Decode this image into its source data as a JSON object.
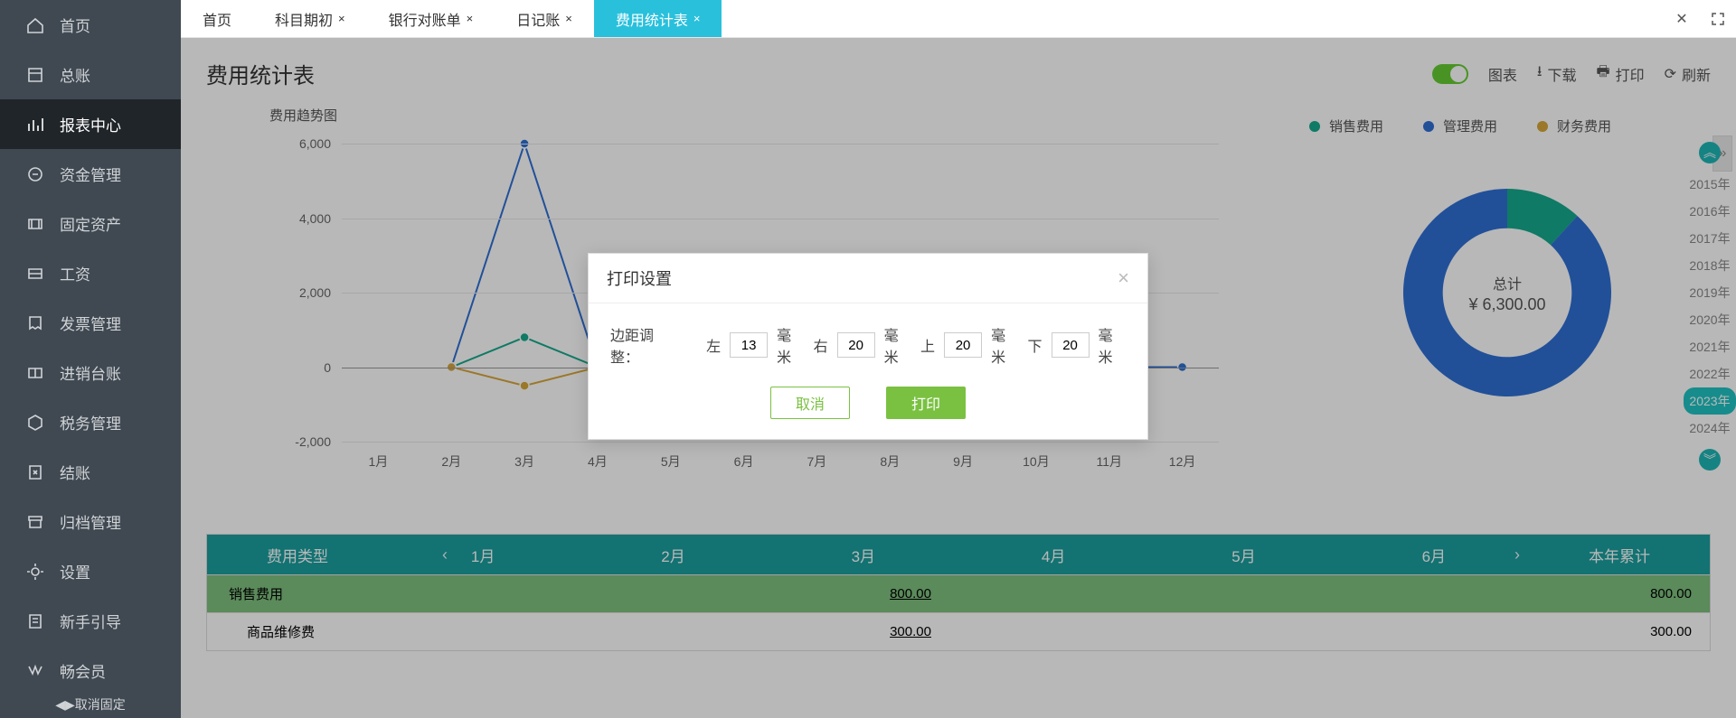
{
  "sidebar": {
    "items": [
      {
        "label": "首页",
        "icon": "home"
      },
      {
        "label": "总账",
        "icon": "ledger"
      },
      {
        "label": "报表中心",
        "icon": "chart",
        "active": true
      },
      {
        "label": "资金管理",
        "icon": "money"
      },
      {
        "label": "固定资产",
        "icon": "asset"
      },
      {
        "label": "工资",
        "icon": "salary"
      },
      {
        "label": "发票管理",
        "icon": "invoice"
      },
      {
        "label": "进销台账",
        "icon": "inventory"
      },
      {
        "label": "税务管理",
        "icon": "tax"
      },
      {
        "label": "结账",
        "icon": "close-book"
      },
      {
        "label": "归档管理",
        "icon": "archive"
      },
      {
        "label": "设置",
        "icon": "settings"
      },
      {
        "label": "新手引导",
        "icon": "guide"
      },
      {
        "label": "畅会员",
        "icon": "vip"
      }
    ],
    "pin_label": "取消固定"
  },
  "tabs": {
    "items": [
      {
        "label": "首页",
        "closable": false
      },
      {
        "label": "科目期初",
        "closable": true
      },
      {
        "label": "银行对账单",
        "closable": true
      },
      {
        "label": "日记账",
        "closable": true
      },
      {
        "label": "费用统计表",
        "closable": true,
        "active": true
      }
    ]
  },
  "page": {
    "title": "费用统计表",
    "toolbar": {
      "chart_mode": "图表",
      "download": "下载",
      "print": "打印",
      "refresh": "刷新"
    }
  },
  "chart": {
    "title": "费用趋势图",
    "type": "line",
    "x_labels": [
      "1月",
      "2月",
      "3月",
      "4月",
      "5月",
      "6月",
      "7月",
      "8月",
      "9月",
      "10月",
      "11月",
      "12月"
    ],
    "y_ticks": [
      -2000,
      0,
      2000,
      4000,
      6000
    ],
    "ylim": [
      -2000,
      6000
    ],
    "grid_color": "#e8e8e8",
    "axis_color": "#999999",
    "series": [
      {
        "name": "销售费用",
        "color": "#15a98c",
        "values": [
          null,
          0,
          800,
          0,
          0,
          0,
          0,
          0,
          0,
          0,
          0,
          0
        ]
      },
      {
        "name": "管理费用",
        "color": "#2e6fd4",
        "values": [
          null,
          0,
          6000,
          0,
          0,
          0,
          0,
          0,
          0,
          0,
          0,
          0
        ]
      },
      {
        "name": "财务费用",
        "color": "#d7a63a",
        "values": [
          null,
          0,
          -500,
          0,
          null,
          null,
          null,
          null,
          null,
          null,
          null,
          null
        ]
      }
    ],
    "marker_radius": 5
  },
  "donut": {
    "total_label": "总计",
    "total_value": "¥ 6,300.00",
    "slices": [
      {
        "name": "销售费用",
        "value": 800,
        "color": "#15a98c"
      },
      {
        "name": "管理费用",
        "value": 6000,
        "color": "#2e6fd4"
      },
      {
        "name": "财务费用",
        "value": -500,
        "color": "#d7a63a"
      }
    ],
    "inner_ratio": 0.62
  },
  "years": {
    "list": [
      "2015年",
      "2016年",
      "2017年",
      "2018年",
      "2019年",
      "2020年",
      "2021年",
      "2022年",
      "2023年",
      "2024年"
    ],
    "active": "2023年"
  },
  "table": {
    "type_header": "费用类型",
    "months": [
      "1月",
      "2月",
      "3月",
      "4月",
      "5月",
      "6月"
    ],
    "total_header": "本年累计",
    "rows": [
      {
        "type": "销售费用",
        "highlight": true,
        "indent": false,
        "month3": "800.00",
        "total": "800.00"
      },
      {
        "type": "商品维修费",
        "highlight": false,
        "indent": true,
        "month3": "300.00",
        "total": "300.00"
      }
    ]
  },
  "modal": {
    "title": "打印设置",
    "margin_label": "边距调整：",
    "left_label": "左",
    "left_value": "13",
    "right_label": "右",
    "right_value": "20",
    "top_label": "上",
    "top_value": "20",
    "bottom_label": "下",
    "bottom_value": "20",
    "unit": "毫米",
    "cancel": "取消",
    "ok": "打印"
  }
}
